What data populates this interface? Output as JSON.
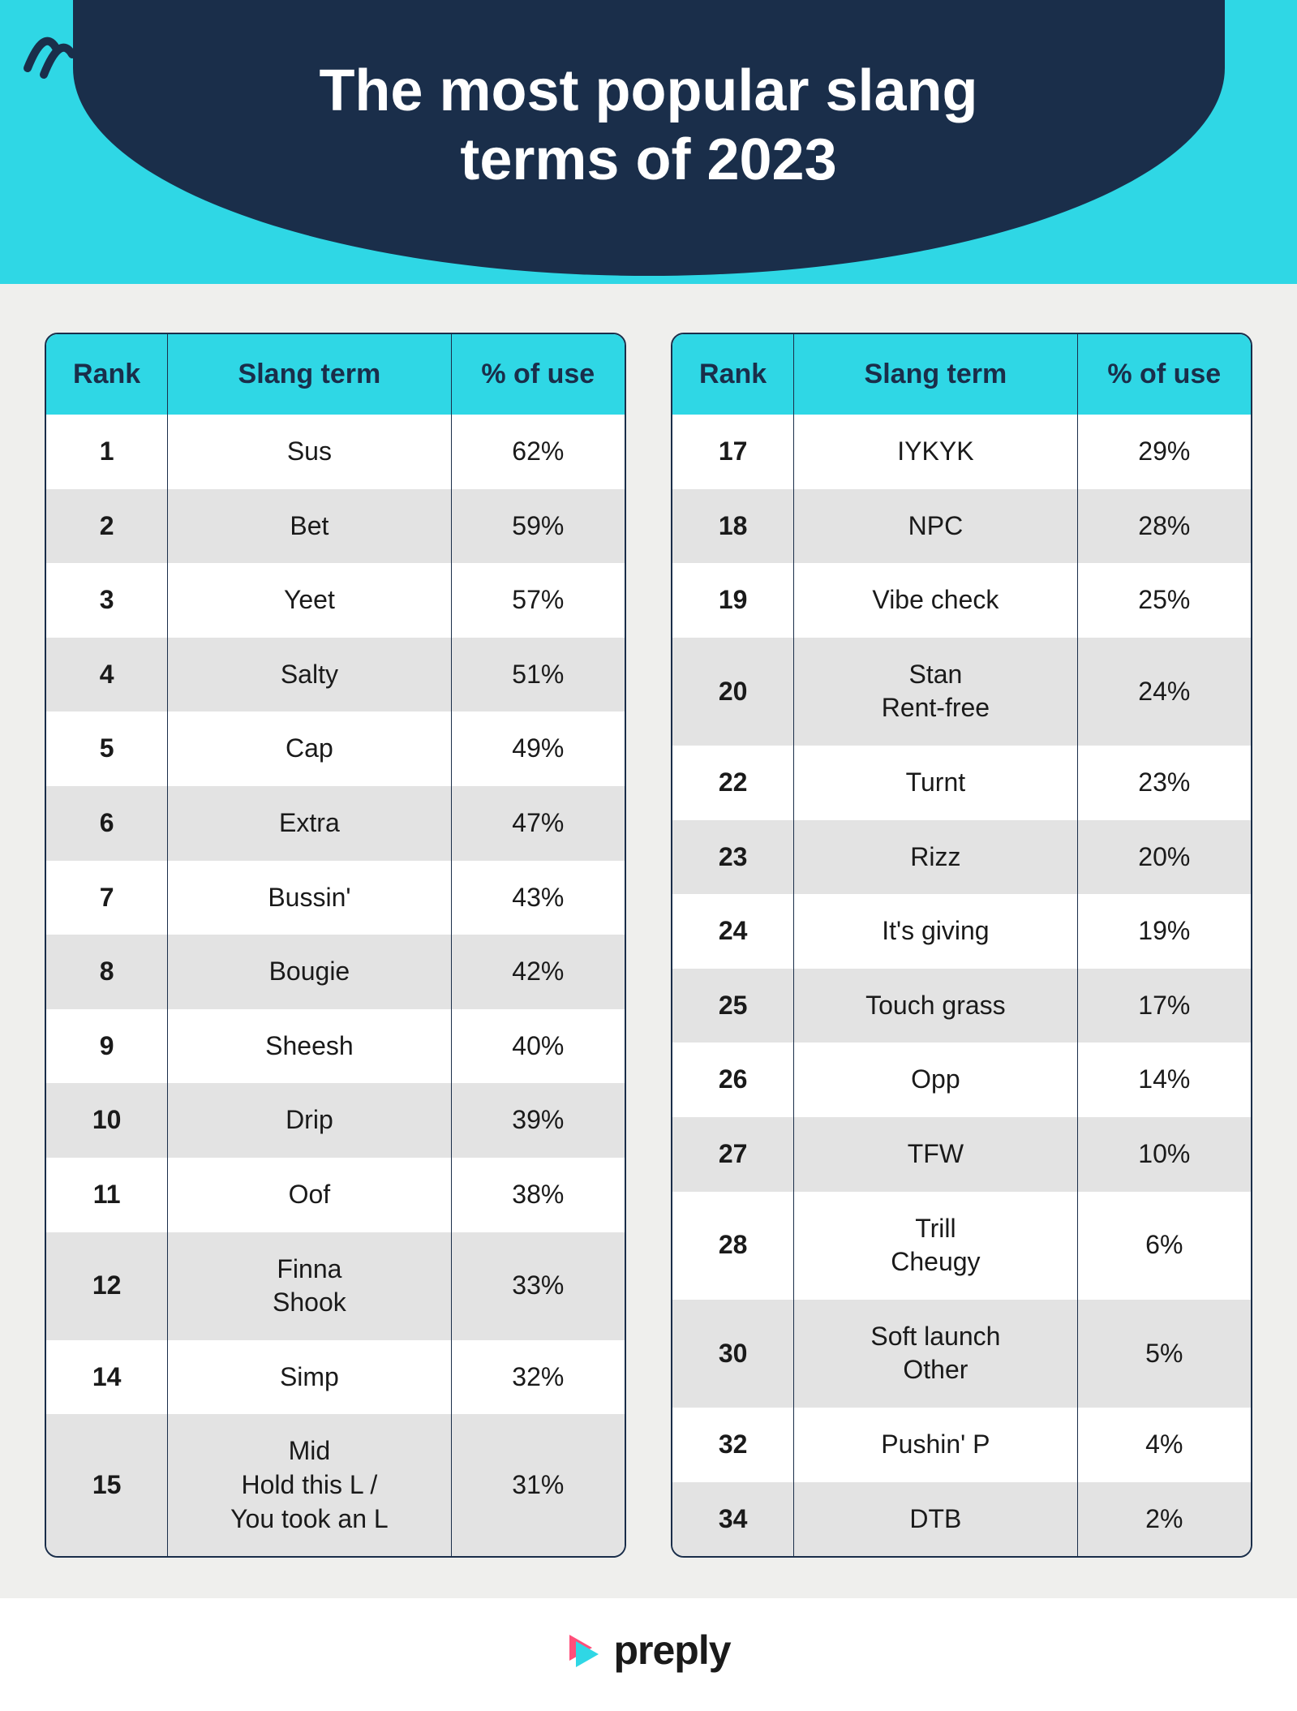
{
  "title_line1": "The most popular slang",
  "title_line2": "terms of 2023",
  "columns": {
    "rank": "Rank",
    "term": "Slang term",
    "pct": "% of use"
  },
  "colors": {
    "cyan": "#2fd7e5",
    "navy": "#1a2e4a",
    "page_bg": "#efefed",
    "row_alt": "#e3e3e3",
    "white": "#ffffff",
    "logo_pink": "#ff4f7a"
  },
  "typography": {
    "title_fontsize": 72,
    "header_fontsize": 34,
    "cell_fontsize": 32,
    "logo_fontsize": 50
  },
  "table_left": [
    {
      "rank": "1",
      "term": "Sus",
      "pct": "62%"
    },
    {
      "rank": "2",
      "term": "Bet",
      "pct": "59%"
    },
    {
      "rank": "3",
      "term": "Yeet",
      "pct": "57%"
    },
    {
      "rank": "4",
      "term": "Salty",
      "pct": "51%"
    },
    {
      "rank": "5",
      "term": "Cap",
      "pct": "49%"
    },
    {
      "rank": "6",
      "term": "Extra",
      "pct": "47%"
    },
    {
      "rank": "7",
      "term": "Bussin'",
      "pct": "43%"
    },
    {
      "rank": "8",
      "term": "Bougie",
      "pct": "42%"
    },
    {
      "rank": "9",
      "term": "Sheesh",
      "pct": "40%"
    },
    {
      "rank": "10",
      "term": "Drip",
      "pct": "39%"
    },
    {
      "rank": "11",
      "term": "Oof",
      "pct": "38%"
    },
    {
      "rank": "12",
      "term": "Finna\nShook",
      "pct": "33%"
    },
    {
      "rank": "14",
      "term": "Simp",
      "pct": "32%"
    },
    {
      "rank": "15",
      "term": "Mid\nHold this L /\nYou took an L",
      "pct": "31%"
    }
  ],
  "table_right": [
    {
      "rank": "17",
      "term": "IYKYK",
      "pct": "29%"
    },
    {
      "rank": "18",
      "term": "NPC",
      "pct": "28%"
    },
    {
      "rank": "19",
      "term": "Vibe check",
      "pct": "25%"
    },
    {
      "rank": "20",
      "term": "Stan\nRent-free",
      "pct": "24%"
    },
    {
      "rank": "22",
      "term": "Turnt",
      "pct": "23%"
    },
    {
      "rank": "23",
      "term": "Rizz",
      "pct": "20%"
    },
    {
      "rank": "24",
      "term": "It's giving",
      "pct": "19%"
    },
    {
      "rank": "25",
      "term": "Touch grass",
      "pct": "17%"
    },
    {
      "rank": "26",
      "term": "Opp",
      "pct": "14%"
    },
    {
      "rank": "27",
      "term": "TFW",
      "pct": "10%"
    },
    {
      "rank": "28",
      "term": "Trill\nCheugy",
      "pct": "6%"
    },
    {
      "rank": "30",
      "term": "Soft launch\nOther",
      "pct": "5%"
    },
    {
      "rank": "32",
      "term": "Pushin' P",
      "pct": "4%"
    },
    {
      "rank": "34",
      "term": "DTB",
      "pct": "2%"
    }
  ],
  "brand": "preply"
}
